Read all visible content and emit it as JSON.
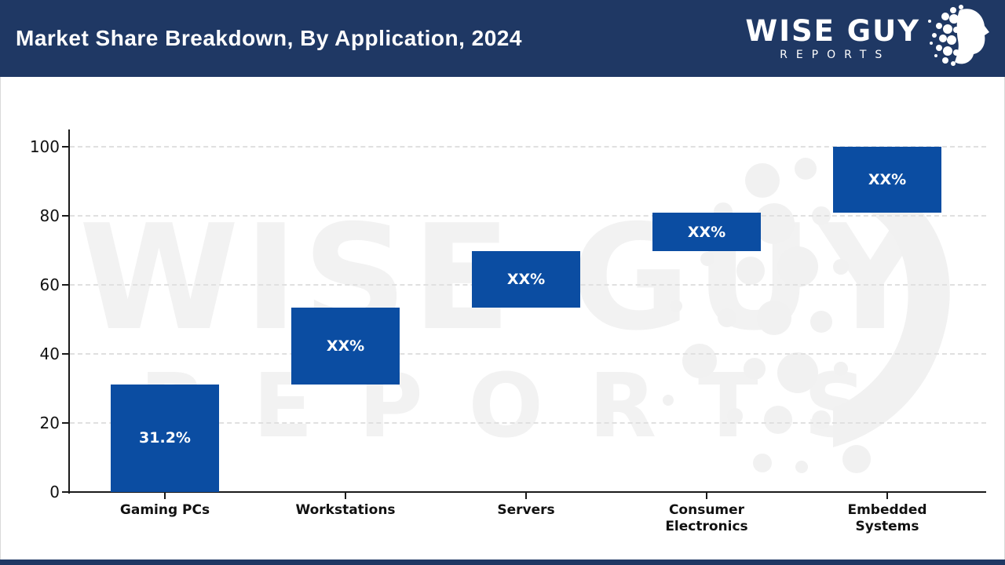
{
  "header": {
    "title": "Market Share Breakdown, By Application, 2024",
    "bg_color": "#1f3864",
    "logo": {
      "line1": "WISE GUY",
      "line2": "REPORTS"
    }
  },
  "watermark": {
    "line1": "WISE GUY",
    "line2": "REPORTS"
  },
  "footer": {
    "bg_color": "#1f3864"
  },
  "chart_data": {
    "type": "bar",
    "subtype": "waterfall",
    "title": "Market Share Breakdown, By Application, 2024",
    "categories": [
      "Gaming PCs",
      "Workstations",
      "Servers",
      "Consumer Electronics",
      "Embedded Systems"
    ],
    "bars": [
      {
        "label": "31.2%",
        "start": 0,
        "end": 31.2
      },
      {
        "label": "XX%",
        "start": 31.2,
        "end": 53.4
      },
      {
        "label": "XX%",
        "start": 53.4,
        "end": 69.7
      },
      {
        "label": "XX%",
        "start": 69.7,
        "end": 80.9
      },
      {
        "label": "XX%",
        "start": 80.9,
        "end": 100
      }
    ],
    "xlabel": "",
    "ylabel": "",
    "ylim": [
      0,
      105
    ],
    "yticks": [
      0,
      20,
      40,
      60,
      80,
      100
    ],
    "grid": "horizontal-dashed",
    "legend": "none",
    "bar_color": "#0b4da2",
    "bar_label_color": "#ffffff"
  }
}
